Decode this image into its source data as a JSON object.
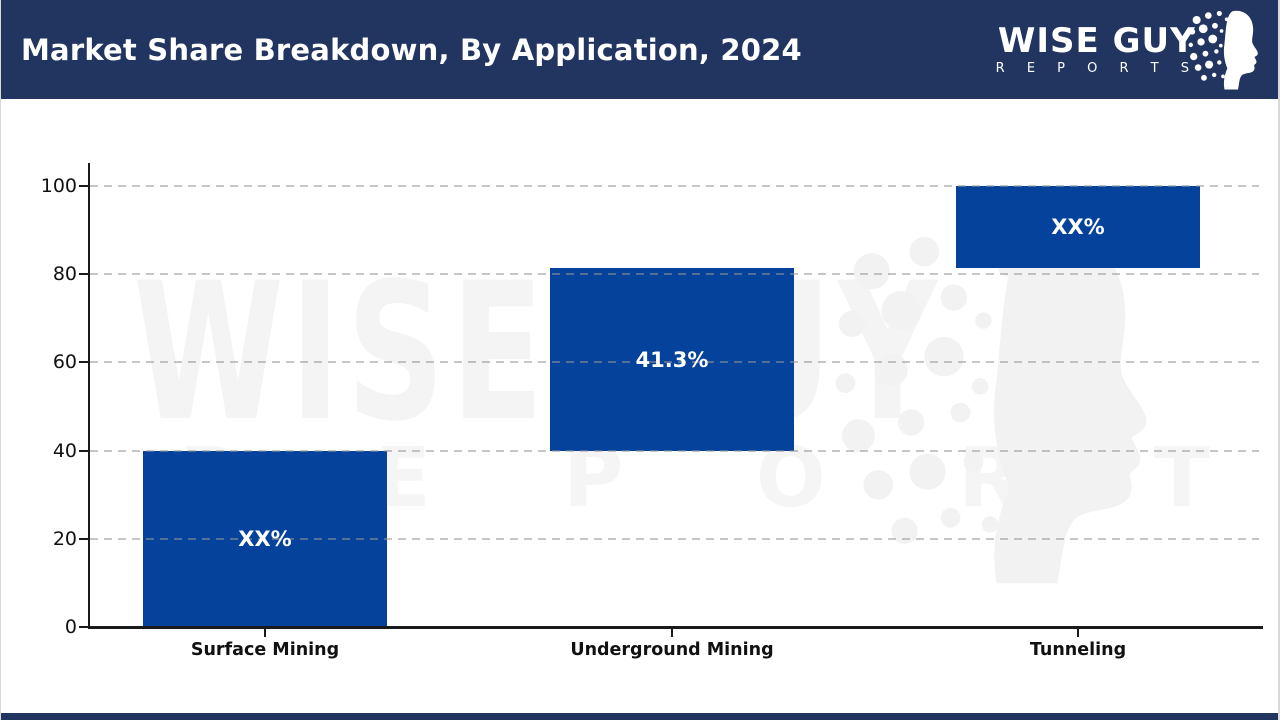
{
  "header": {
    "title": "Market Share Breakdown, By Application, 2024",
    "logo": {
      "name": "WISE GUY",
      "sub": "R E P O R T S"
    }
  },
  "watermark": {
    "name": "WISE GUY",
    "sub": "R E P O R T S"
  },
  "chart_data": {
    "type": "bar",
    "subtype": "floating-segment (waterfall style)",
    "title": "Market Share Breakdown, By Application, 2024",
    "categories": [
      "Surface Mining",
      "Underground Mining",
      "Tunneling"
    ],
    "series": [
      {
        "name": "Market share (%)",
        "segments": [
          {
            "category": "Surface Mining",
            "start": 0,
            "end": 40,
            "label": "XX%"
          },
          {
            "category": "Underground Mining",
            "start": 40,
            "end": 81.3,
            "label": "41.3%"
          },
          {
            "category": "Tunneling",
            "start": 81.3,
            "end": 100,
            "label": "XX%"
          }
        ]
      }
    ],
    "xlabel": "",
    "ylabel": "",
    "ylim": [
      0,
      100
    ],
    "yticks": [
      0,
      20,
      40,
      60,
      80,
      100
    ],
    "grid": "horizontal dashed",
    "legend": "none",
    "bar_color": "#04429c",
    "bar_label_color": "#ffffff"
  },
  "colors": {
    "header_bg": "#213560",
    "footer_bg": "#213560",
    "axis": "#1a1a1a",
    "grid": "#d8d8d8",
    "watermark": "#f4f4f4"
  }
}
